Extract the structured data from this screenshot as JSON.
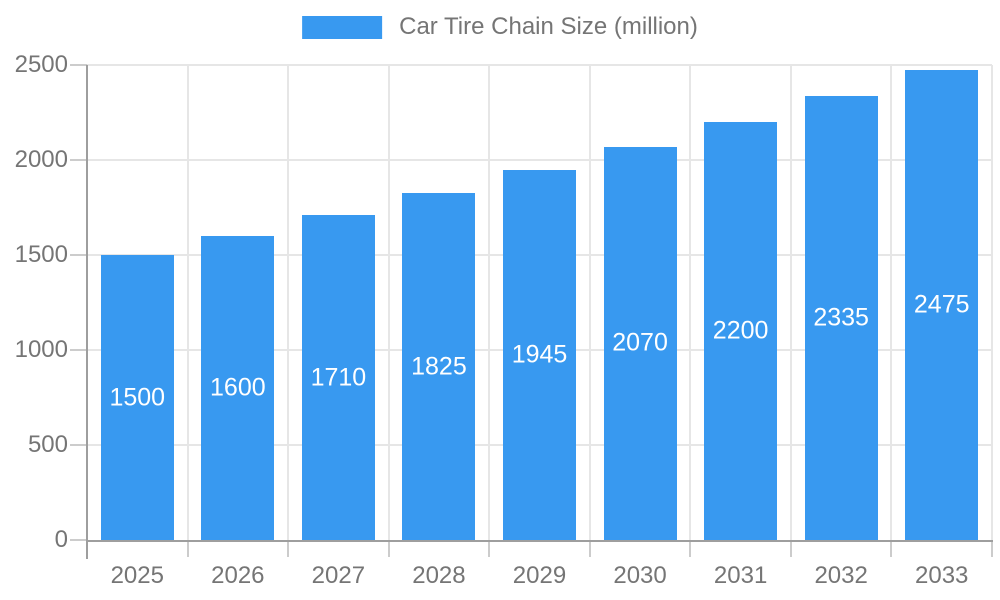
{
  "legend": {
    "label": "Car Tire Chain Size (million)"
  },
  "chart_data": {
    "type": "bar",
    "title": "Car Tire Chain Size (million)",
    "categories": [
      "2025",
      "2026",
      "2027",
      "2028",
      "2029",
      "2030",
      "2031",
      "2032",
      "2033"
    ],
    "values": [
      1500,
      1600,
      1710,
      1825,
      1945,
      2070,
      2200,
      2335,
      2475
    ],
    "series": [
      {
        "name": "Car Tire Chain Size (million)",
        "values": [
          1500,
          1600,
          1710,
          1825,
          1945,
          2070,
          2200,
          2335,
          2475
        ]
      }
    ],
    "bar_value_labels": [
      "1500",
      "1600",
      "1710",
      "1825",
      "1945",
      "2070",
      "2200",
      "2335",
      "2475"
    ],
    "xlabel": "",
    "ylabel": "",
    "ylim": [
      0,
      2500
    ],
    "yticks": [
      0,
      500,
      1000,
      1500,
      2000,
      2500
    ],
    "ytick_labels": [
      "0",
      "500",
      "1000",
      "1500",
      "2000",
      "2500"
    ],
    "grid": true,
    "legend_position": "top-center",
    "value_label_position": "inside-center",
    "colors": {
      "bar": "#3899f0",
      "grid": "#e6e6e6",
      "axis": "#9e9e9e",
      "tick": "#cccccc",
      "text": "#757575",
      "bar_label": "#ffffff",
      "background": "#ffffff"
    }
  }
}
